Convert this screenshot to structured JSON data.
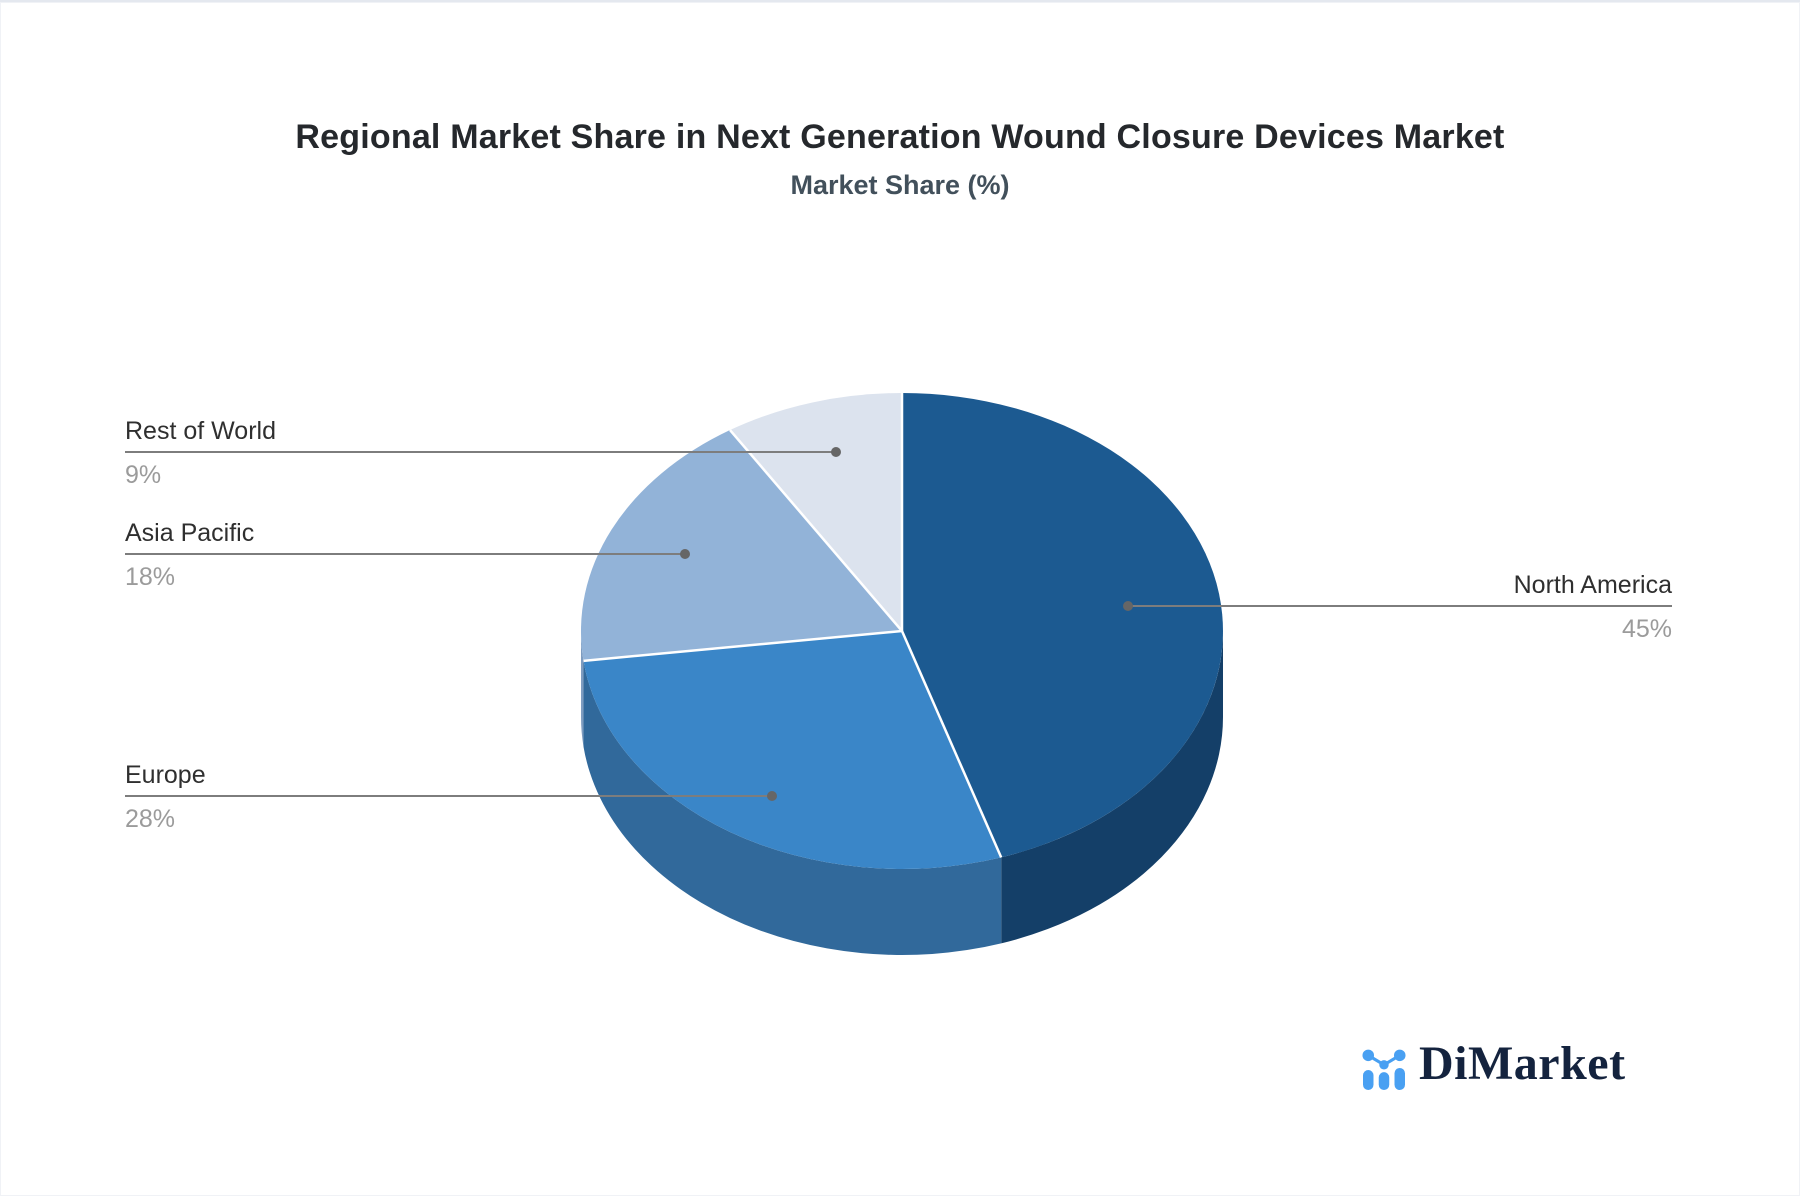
{
  "header": {
    "title": "Regional Market Share in Next Generation Wound Closure Devices Market",
    "subtitle": "Market Share (%)"
  },
  "chart_data": {
    "type": "pie",
    "title": "Regional Market Share in Next Generation Wound Closure Devices Market",
    "subtitle": "Market Share (%)",
    "unit": "%",
    "style": "3d",
    "start_angle_deg": 0,
    "direction": "clockwise",
    "legend_position": "none",
    "categories": [
      "North America",
      "Europe",
      "Asia Pacific",
      "Rest of World"
    ],
    "values": [
      45,
      28,
      18,
      9
    ],
    "slices": [
      {
        "name": "North America",
        "value": 45,
        "label": "45%",
        "color": "#1c5a91",
        "side_color": "#143f68"
      },
      {
        "name": "Europe",
        "value": 28,
        "label": "28%",
        "color": "#3a86c8",
        "side_color": "#31699b"
      },
      {
        "name": "Asia Pacific",
        "value": 18,
        "label": "18%",
        "color": "#92b3d8",
        "side_color": "#7e9cc0"
      },
      {
        "name": "Rest of World",
        "value": 9,
        "label": "9%",
        "color": "#dce3ee",
        "side_color": "#c2cdde"
      }
    ],
    "connector_color": "#7d7d7d",
    "connector_dot_color": "#666666"
  },
  "branding": {
    "logo_text": "DiMarket",
    "logo_icon": "bar-chart-trend-icon",
    "logo_accent_color": "#49a0f2",
    "logo_text_color": "#14233e"
  }
}
